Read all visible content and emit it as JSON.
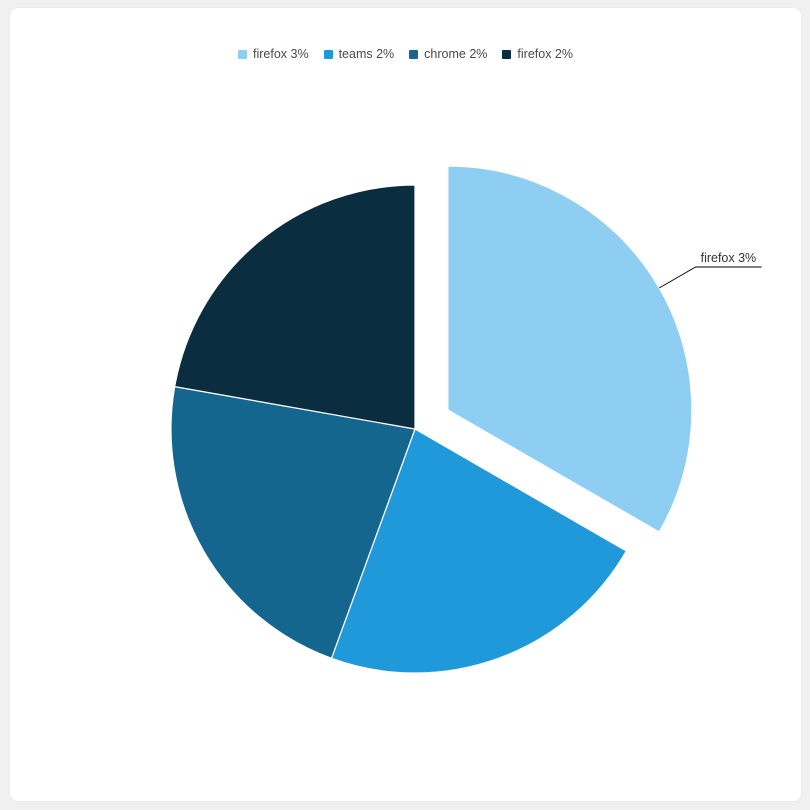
{
  "page": {
    "background_color": "#f0f0f0",
    "card_color": "#ffffff"
  },
  "chart_data": {
    "type": "pie",
    "title": "",
    "legend_position": "top",
    "start_angle_deg": 0,
    "direction": "clockwise",
    "slices": [
      {
        "label": "firefox 3%",
        "name": "firefox",
        "value": 3,
        "color": "#8dcef2",
        "exploded": true,
        "callout_label": "firefox 3%"
      },
      {
        "label": "teams 2%",
        "name": "teams",
        "value": 2,
        "color": "#2099da",
        "exploded": false
      },
      {
        "label": "chrome 2%",
        "name": "chrome",
        "value": 2,
        "color": "#15668f",
        "exploded": false
      },
      {
        "label": "firefox 2%",
        "name": "firefox",
        "value": 2,
        "color": "#0b2d40",
        "exploded": false
      }
    ],
    "callout": {
      "text_color": "#333333",
      "line_color": "#000000"
    },
    "legend_text_color": "#4a4a4a",
    "slice_border_color": "#ffffff"
  }
}
